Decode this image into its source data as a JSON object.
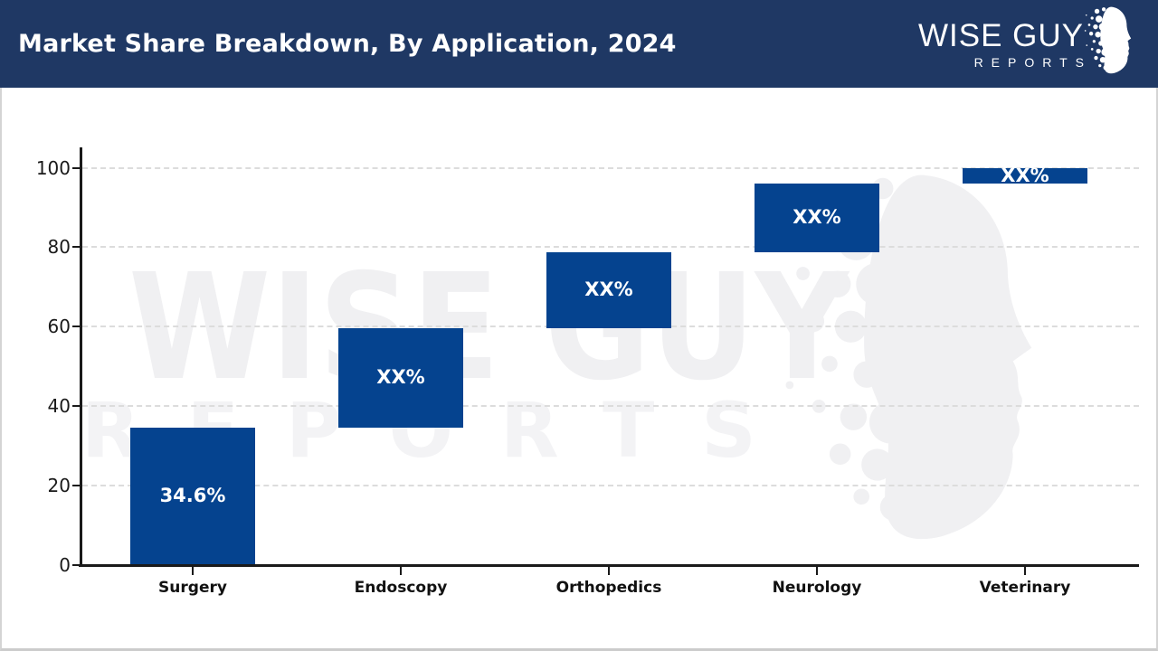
{
  "header": {
    "title": "Market Share Breakdown, By Application, 2024",
    "logo": {
      "line1": "WISE GUY",
      "line2": "REPORTS"
    }
  },
  "watermark": {
    "line1": "WISE GUY",
    "line2": "REPORTS"
  },
  "colors": {
    "header_bg": "#1f3864",
    "bar": "#05438f",
    "grid": "#dcdcdc",
    "axis": "#1a1a1a",
    "watermark": "#f0f0f2"
  },
  "chart_data": {
    "type": "bar",
    "subtype": "waterfall",
    "title": "Market Share Breakdown, By Application, 2024",
    "categories": [
      "Surgery",
      "Endoscopy",
      "Orthopedics",
      "Neurology",
      "Veterinary"
    ],
    "segments": [
      {
        "category": "Surgery",
        "start": 0,
        "end": 34.6,
        "label": "34.6%"
      },
      {
        "category": "Endoscopy",
        "start": 34.6,
        "end": 59.6,
        "label": "XX%"
      },
      {
        "category": "Orthopedics",
        "start": 59.6,
        "end": 78.8,
        "label": "XX%"
      },
      {
        "category": "Neurology",
        "start": 78.8,
        "end": 96.1,
        "label": "XX%"
      },
      {
        "category": "Veterinary",
        "start": 96.1,
        "end": 100.0,
        "label": "XX%"
      }
    ],
    "y_ticks": [
      0,
      20,
      40,
      60,
      80,
      100
    ],
    "ylim": [
      0,
      106
    ],
    "xlabel": "",
    "ylabel": "",
    "grid": "horizontal-dashed",
    "legend": "none",
    "bar_color": "#05438f",
    "masked_label": "XX%"
  }
}
